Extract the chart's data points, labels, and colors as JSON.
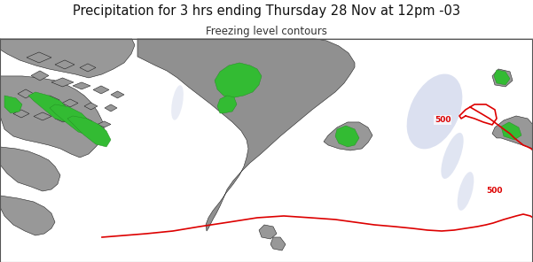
{
  "title": "Precipitation for 3 hrs ending Thursday 28 Nov at 12pm -03",
  "subtitle": "Freezing level contours",
  "title_fontsize": 10.5,
  "subtitle_fontsize": 8.5,
  "bg_color": "#ffffff",
  "ocean_color": "#dde4f0",
  "land_color": "#989898",
  "land_edge": "#222222",
  "precip_color": "#33bb33",
  "precip_edge": "#228822",
  "red_contour": "#dd0000",
  "label_500_color": "#dd0000"
}
